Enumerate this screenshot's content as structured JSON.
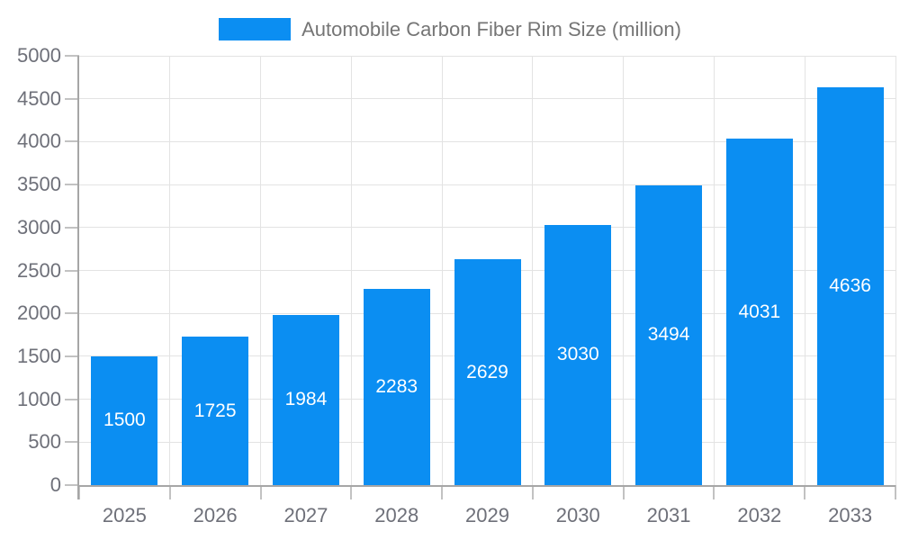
{
  "legend": {
    "label": "Automobile Carbon Fiber Rim Size (million)"
  },
  "colors": {
    "bar": "#0B8EF2",
    "axis_line": "#A6A6A6",
    "grid_line": "#E3E3E3",
    "tick": "#C2C2C2",
    "axis_text": "#6E7079",
    "legend_text": "#757575",
    "bar_label_text": "#FFFFFF",
    "background": "#FFFFFF"
  },
  "chart_data": {
    "type": "bar",
    "title": "Automobile Carbon Fiber Rim Size (million)",
    "series_name": "Automobile Carbon Fiber Rim Size (million)",
    "categories": [
      "2025",
      "2026",
      "2027",
      "2028",
      "2029",
      "2030",
      "2031",
      "2032",
      "2033"
    ],
    "values": [
      1500,
      1725,
      1984,
      2283,
      2629,
      3030,
      3494,
      4031,
      4636
    ],
    "xlabel": "",
    "ylabel": "",
    "ylim": [
      0,
      5000
    ],
    "ytick_interval": 500,
    "yticks": [
      0,
      500,
      1000,
      1500,
      2000,
      2500,
      3000,
      3500,
      4000,
      4500,
      5000
    ],
    "grid": true,
    "legend_position": "top-center",
    "bar_labels_visible": true,
    "bar_label_position": "center"
  }
}
